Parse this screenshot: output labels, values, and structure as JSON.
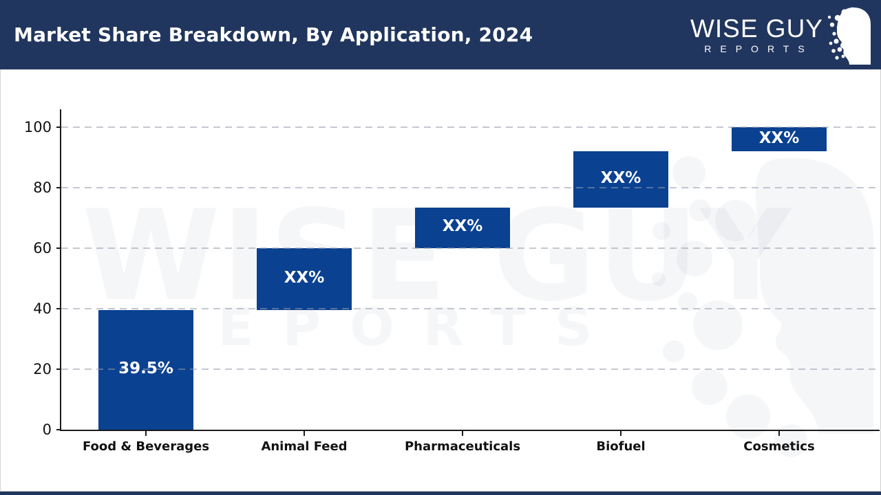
{
  "header": {
    "title": "Market Share Breakdown, By Application, 2024",
    "logo": {
      "line1": "WISE GUY",
      "line2": "REPORTS"
    }
  },
  "watermark": {
    "line1": "WISE GUY",
    "line2": "REPORTS"
  },
  "colors": {
    "navy": "#21365e",
    "bar_blue": "#0a4191",
    "axis_black": "#1a1a1a",
    "label_white": "#ffffff"
  },
  "chart_data": {
    "type": "bar",
    "subtype": "waterfall",
    "title": "Market Share Breakdown, By Application, 2024",
    "categories": [
      "Food & Beverages",
      "Animal Feed",
      "Pharmaceuticals",
      "Biofuel",
      "Cosmetics"
    ],
    "segments": [
      {
        "category": "Food & Beverages",
        "start": 0,
        "end": 39.5,
        "value": 39.5,
        "label": "39.5%"
      },
      {
        "category": "Animal Feed",
        "start": 39.5,
        "end": 60,
        "value": 20.5,
        "label": "XX%"
      },
      {
        "category": "Pharmaceuticals",
        "start": 60,
        "end": 73.5,
        "value": 13.5,
        "label": "XX%"
      },
      {
        "category": "Biofuel",
        "start": 73.5,
        "end": 92,
        "value": 18.5,
        "label": "XX%"
      },
      {
        "category": "Cosmetics",
        "start": 92,
        "end": 100,
        "value": 8,
        "label": "XX%"
      }
    ],
    "xlabel": "",
    "ylabel": "",
    "ylim": [
      0,
      100
    ],
    "yticks": [
      0,
      20,
      40,
      60,
      80,
      100
    ],
    "grid": "horizontal-dashed",
    "legend": "none",
    "bar_value_labels_inside": true
  }
}
